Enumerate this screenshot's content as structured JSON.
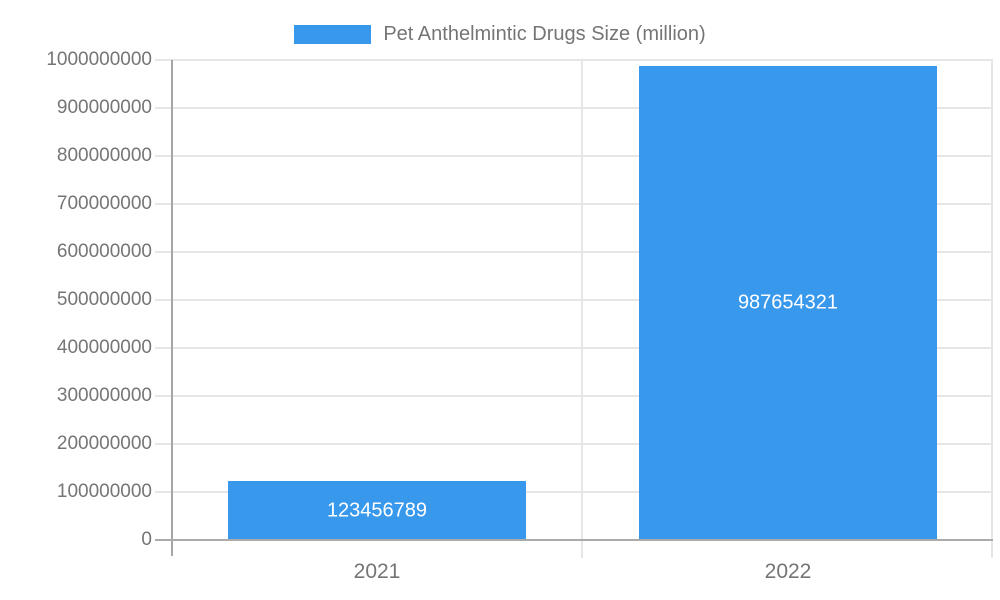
{
  "chart_data": {
    "type": "bar",
    "title": "Pet Anthelmintic Drugs Size (million)",
    "legend": {
      "label": "Pet Anthelmintic Drugs Size (million)",
      "position": "top"
    },
    "categories": [
      "2021",
      "2022"
    ],
    "values": [
      123456789,
      987654321
    ],
    "value_labels": [
      "123456789",
      "987654321"
    ],
    "xlabel": "",
    "ylabel": "",
    "ylim": [
      0,
      1000000000
    ],
    "ytick_interval": 100000000,
    "ytick_labels": [
      "0",
      "100000000",
      "200000000",
      "300000000",
      "400000000",
      "500000000",
      "600000000",
      "700000000",
      "800000000",
      "900000000",
      "1000000000"
    ],
    "grid": true,
    "colors": {
      "bar": "#3898EC",
      "axis_text": "#757575",
      "value_text": "#FFFFFF",
      "grid_line": "#E6E6E6",
      "axis_line": "#A6A6A6",
      "background": "#FFFFFF"
    }
  }
}
